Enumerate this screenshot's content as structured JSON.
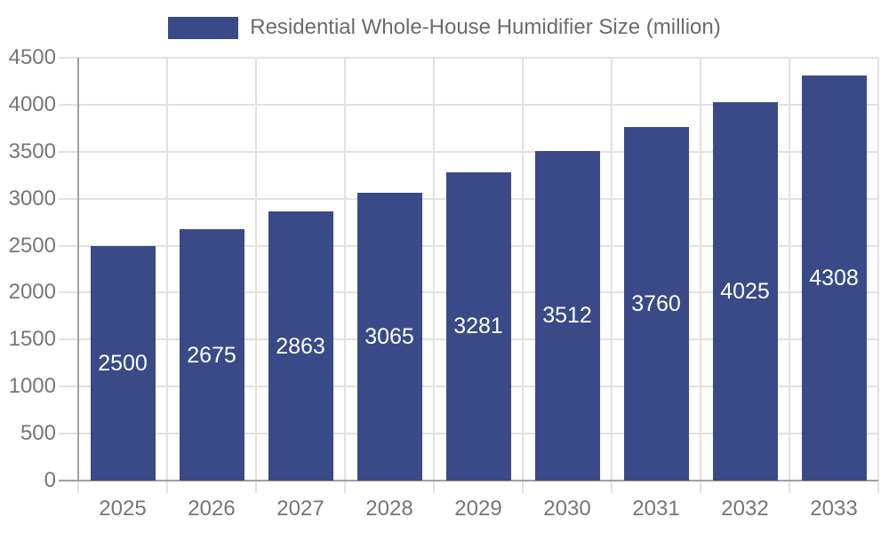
{
  "legend": {
    "label": "Residential Whole-House Humidifier Size (million)"
  },
  "chart_data": {
    "type": "bar",
    "title": "Residential Whole-House Humidifier Size (million)",
    "categories": [
      "2025",
      "2026",
      "2027",
      "2028",
      "2029",
      "2030",
      "2031",
      "2032",
      "2033"
    ],
    "values": [
      2500,
      2675,
      2863,
      3065,
      3281,
      3512,
      3760,
      4025,
      4308
    ],
    "xlabel": "",
    "ylabel": "",
    "ylim": [
      0,
      4500
    ],
    "ytick_step": 500,
    "grid": true,
    "legend_position": "top-center",
    "value_label_position": "inside-center"
  },
  "colors": {
    "bar": "#3A4A88",
    "bar_label": "#FFFFFF",
    "grid": "#E2E2E2",
    "axis": "#A0A0A0",
    "tick_label": "#767676",
    "legend_text": "#6B6B6B",
    "background": "#FFFFFF"
  }
}
